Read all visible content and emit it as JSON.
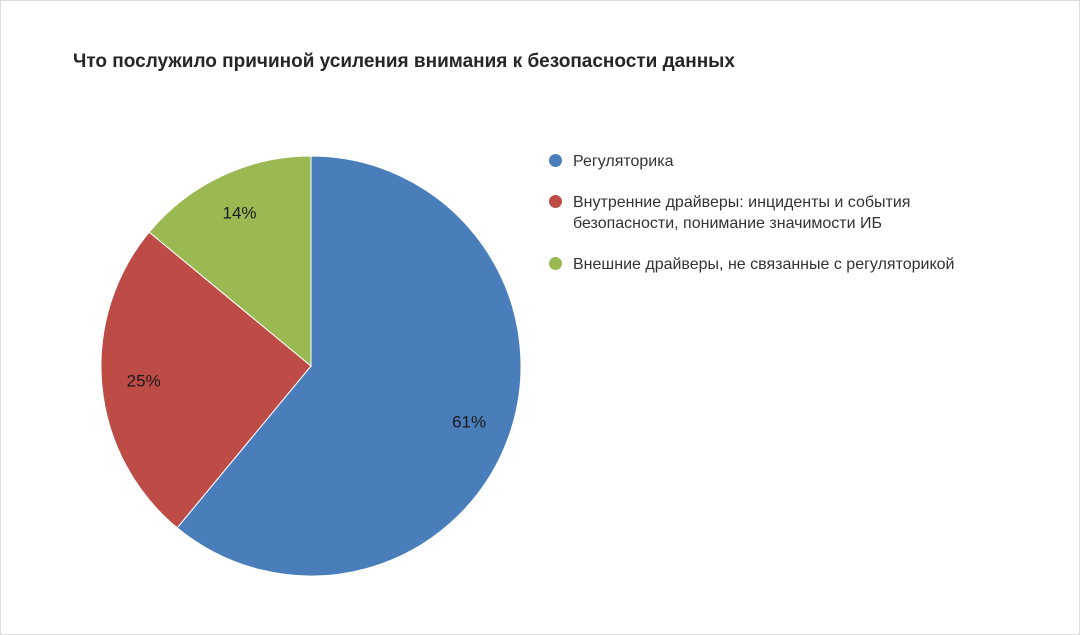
{
  "page": {
    "background": "#ffffff"
  },
  "chart_data": {
    "type": "pie",
    "title": "Что послужило причиной усиления внимания к безопасности данных",
    "direction": "clockwise",
    "start_angle_deg": 0,
    "legend_position": "right",
    "data_labels": "percent, inside slices",
    "slices": [
      {
        "label": "Регуляторика",
        "value": 61,
        "pct_label": "61%",
        "color": "#4a7ebb"
      },
      {
        "label": "Внутренние драйверы: инциденты и события безопасности, понимание значимости ИБ",
        "value": 25,
        "pct_label": "25%",
        "color": "#bd4b46"
      },
      {
        "label": "Внешние драйверы, не связанные с регуляторикой",
        "value": 14,
        "pct_label": "14%",
        "color": "#9ab953"
      }
    ]
  }
}
